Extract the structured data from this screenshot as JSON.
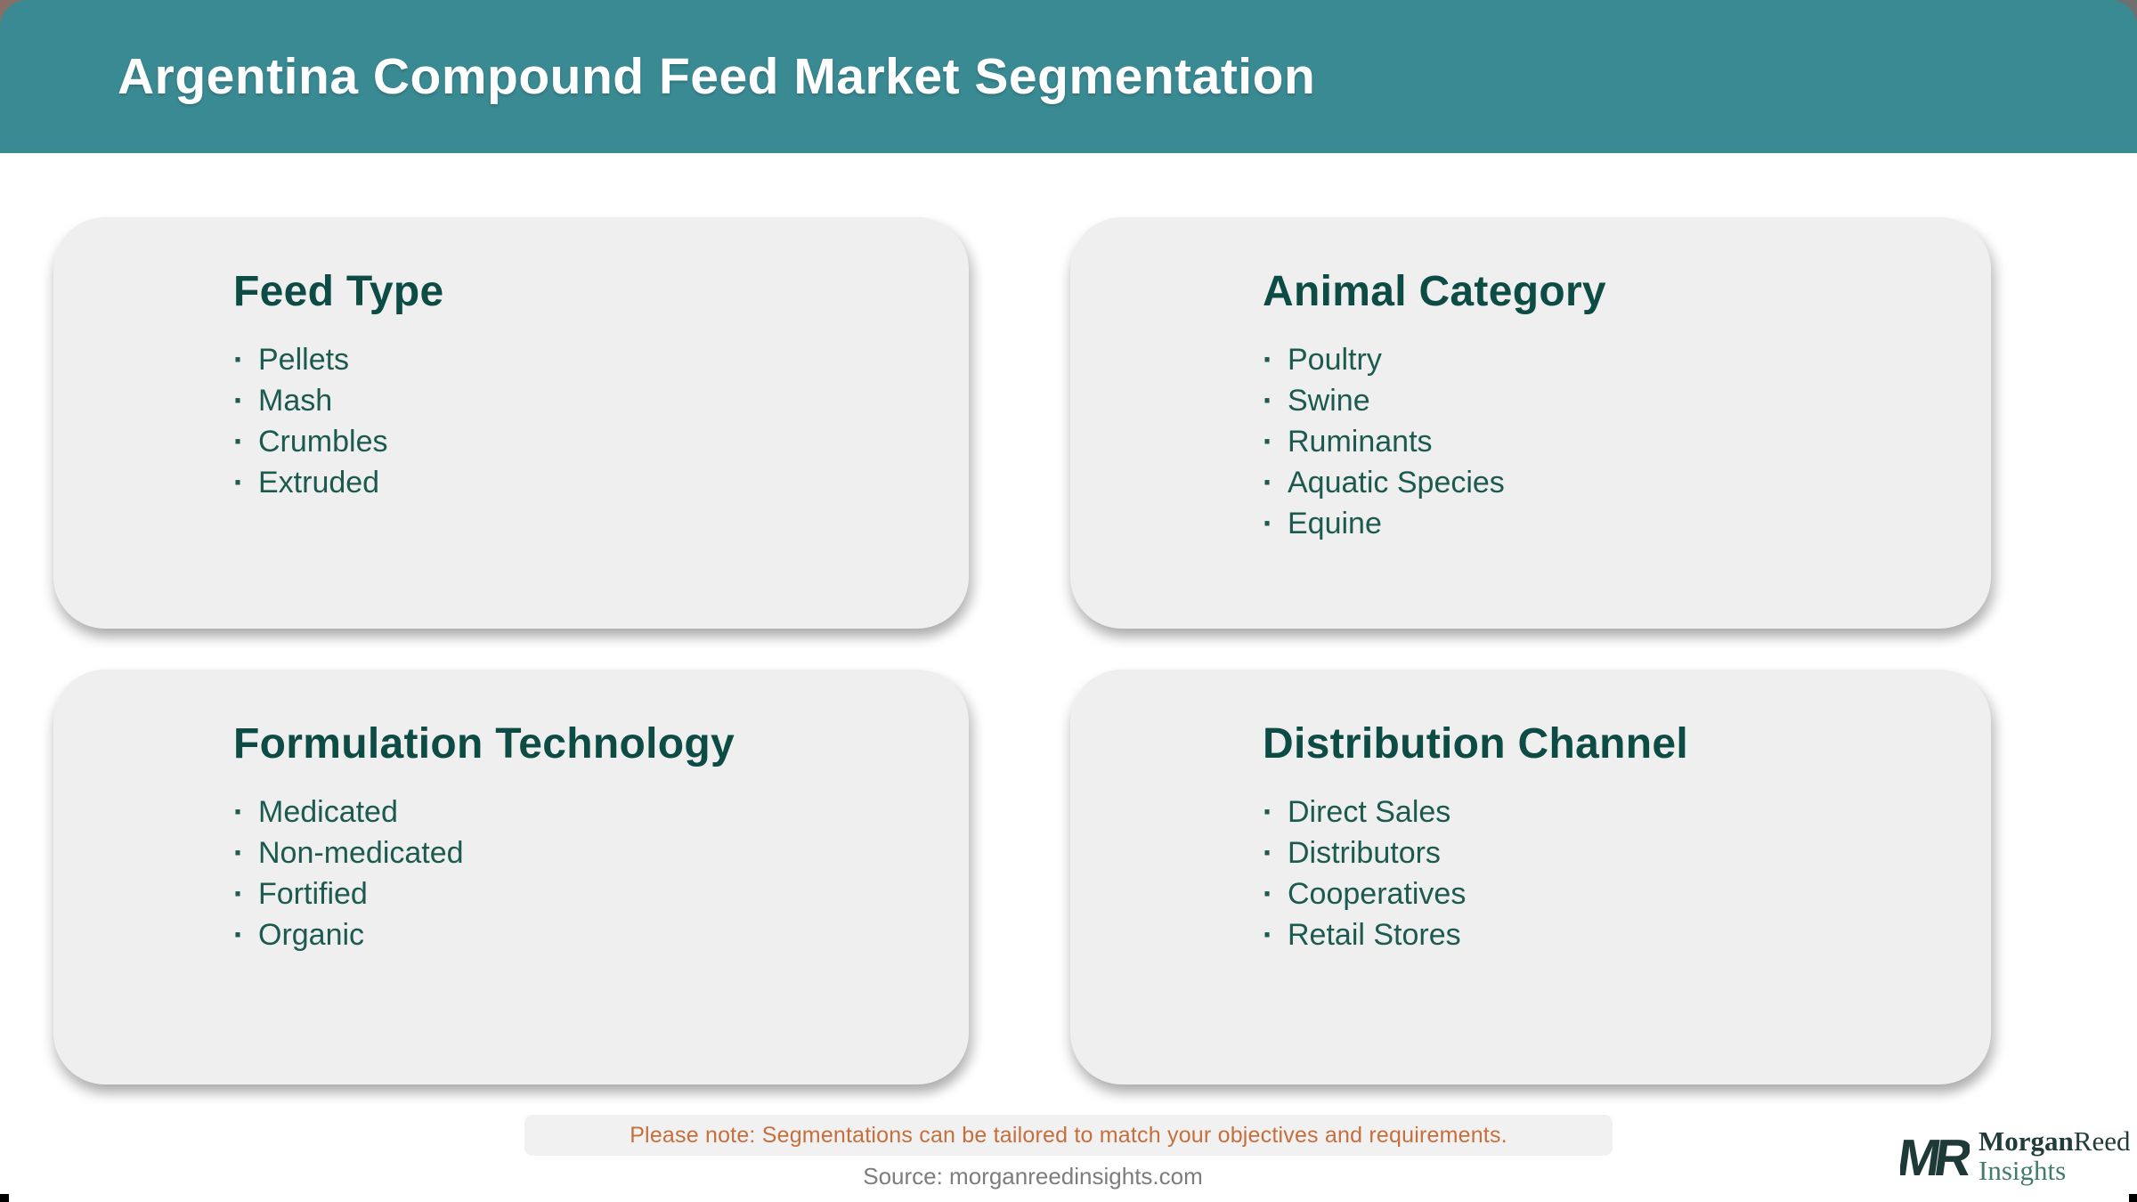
{
  "header": {
    "title": "Argentina Compound Feed Market Segmentation",
    "bg_color": "#3a8a93",
    "text_color": "#ffffff"
  },
  "cards": [
    {
      "title": "Feed Type",
      "items": [
        "Pellets",
        "Mash",
        "Crumbles",
        "Extruded"
      ]
    },
    {
      "title": "Animal Category",
      "items": [
        "Poultry",
        "Swine",
        "Ruminants",
        "Aquatic Species",
        "Equine"
      ]
    },
    {
      "title": "Formulation Technology",
      "items": [
        "Medicated",
        "Non-medicated",
        "Fortified",
        "Organic"
      ]
    },
    {
      "title": "Distribution Channel",
      "items": [
        "Direct Sales",
        "Distributors",
        "Cooperatives",
        "Retail Stores"
      ]
    }
  ],
  "note": {
    "text": "Please note: Segmentations can be tailored to match your objectives and requirements.",
    "text_color": "#c56f3d",
    "bg_color": "#f1f1f1"
  },
  "source": {
    "text": "Source: morganreedinsights.com",
    "text_color": "#7d7d7d"
  },
  "logo": {
    "monogram": "MR",
    "name_part_bold": "Morgan",
    "name_part_regular": "Reed",
    "tagline": "Insights",
    "mark_color": "#1e3a38",
    "name_color": "#213c3a",
    "tagline_color": "#3f7c6d"
  },
  "theme": {
    "card_bg": "#efefef",
    "heading_color": "#0d4c44",
    "item_color": "#1c5a50",
    "page_bg": "#ffffff"
  }
}
